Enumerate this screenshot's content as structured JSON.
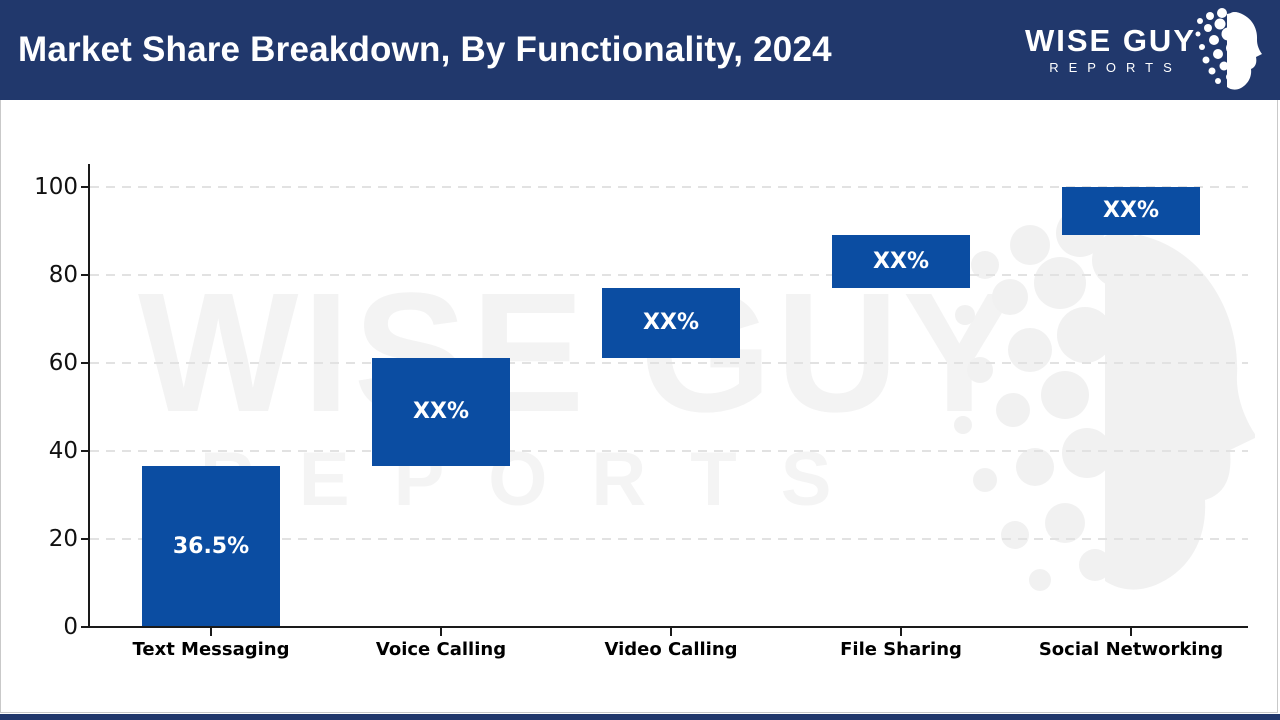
{
  "header": {
    "title": "Market Share Breakdown, By Functionality, 2024",
    "logo_line1": "WISE GUY",
    "logo_line2": "REPORTS"
  },
  "watermark": {
    "line1": "WISE GUY",
    "line2": "REPORTS"
  },
  "colors": {
    "header_bg": "#21386c",
    "bar": "#0b4da2",
    "bar_label": "#ffffff",
    "grid": "#e2e2e2",
    "axis": "#1a1a1a",
    "watermark": "#f3f3f3"
  },
  "chart_data": {
    "type": "bar",
    "subtype": "waterfall",
    "title": "Market Share Breakdown, By Functionality, 2024",
    "categories": [
      "Text Messaging",
      "Voice Calling",
      "Video Calling",
      "File Sharing",
      "Social Networking"
    ],
    "segments": [
      {
        "category": "Text Messaging",
        "start": 0,
        "end": 36.5,
        "label": "36.5%"
      },
      {
        "category": "Voice Calling",
        "start": 36.5,
        "end": 61,
        "label": "XX%"
      },
      {
        "category": "Video Calling",
        "start": 61,
        "end": 77,
        "label": "XX%"
      },
      {
        "category": "File Sharing",
        "start": 77,
        "end": 89,
        "label": "XX%"
      },
      {
        "category": "Social Networking",
        "start": 89,
        "end": 100,
        "label": "XX%"
      }
    ],
    "xlabel": "",
    "ylabel": "",
    "yticks": [
      0,
      20,
      40,
      60,
      80,
      100
    ],
    "ylim": [
      0,
      105
    ],
    "grid": "horizontal-dashed",
    "legend_position": "none",
    "bar_color": "#0b4da2",
    "value_label_color": "#ffffff"
  }
}
